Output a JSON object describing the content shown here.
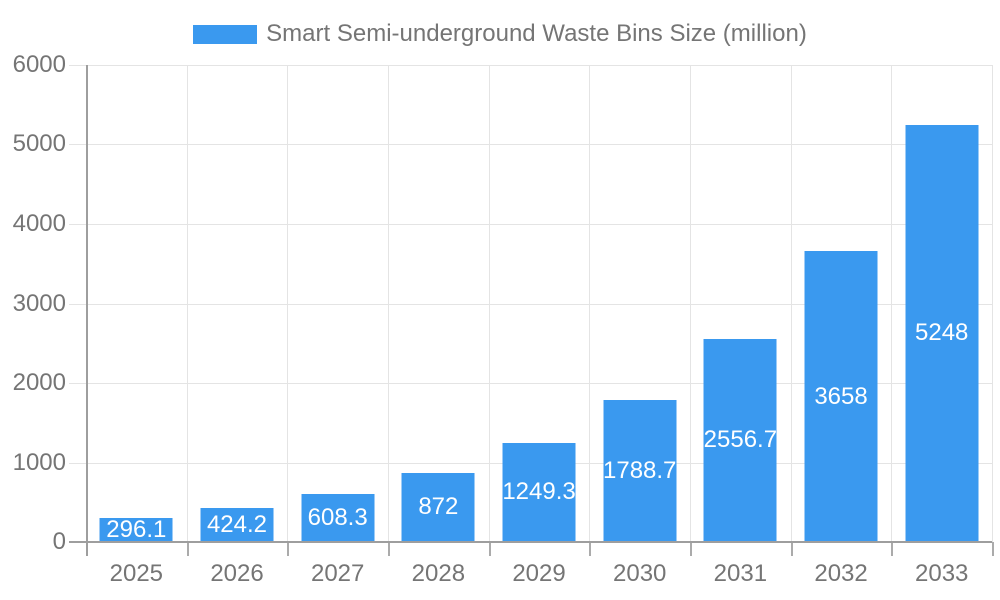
{
  "chart_data": {
    "type": "bar",
    "title": "Smart Semi-underground Waste Bins Size (million)",
    "categories": [
      "2025",
      "2026",
      "2027",
      "2028",
      "2029",
      "2030",
      "2031",
      "2032",
      "2033"
    ],
    "values": [
      296.1,
      424.2,
      608.3,
      872,
      1249.3,
      1788.7,
      2556.7,
      3658,
      5248
    ],
    "value_labels": [
      "296.1",
      "424.2",
      "608.3",
      "872",
      "1249.3",
      "1788.7",
      "2556.7",
      "3658",
      "5248"
    ],
    "ylim": [
      0,
      6000
    ],
    "ytick_step": 1000,
    "ytick_labels": [
      "0",
      "1000",
      "2000",
      "3000",
      "4000",
      "5000",
      "6000"
    ],
    "xlabel": "",
    "ylabel": "",
    "grid": true,
    "legend_position": "top-center",
    "colors": {
      "bar": "#3A99EF",
      "value_label": "#FFFFFF",
      "axis_text": "#757575",
      "axis_line": "#9E9E9E",
      "tick": "#ABABAB",
      "grid_line": "#E4E4E4",
      "background": "#FFFFFF"
    }
  }
}
